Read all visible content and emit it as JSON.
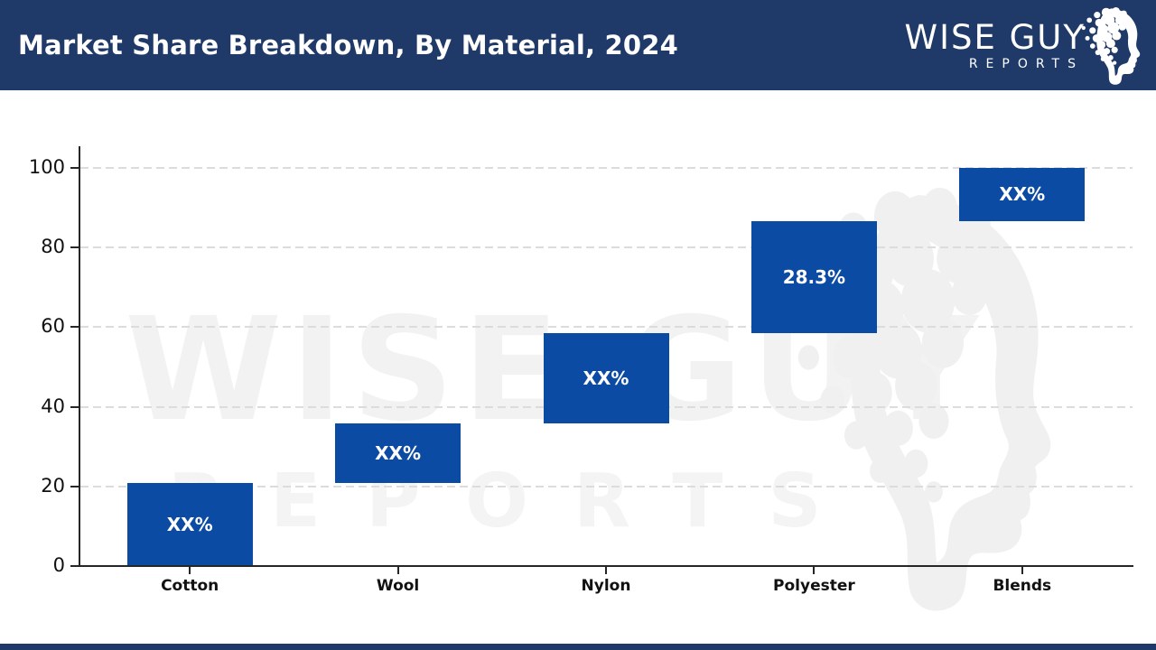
{
  "header": {
    "title": "Market Share Breakdown, By Material, 2024",
    "bg_color": "#1f3a68",
    "logo": {
      "line1": "WISE GUY",
      "line2": "REPORTS"
    }
  },
  "watermark": {
    "line1": "WISE GUY",
    "line2": "REPORTS"
  },
  "chart_data": {
    "type": "bar",
    "variant": "waterfall",
    "title": "Market Share Breakdown, By Material, 2024",
    "categories": [
      "Cotton",
      "Wool",
      "Nylon",
      "Polyester",
      "Blends"
    ],
    "segments": [
      {
        "category": "Cotton",
        "start": 0,
        "end": 20.9,
        "value": 20.9,
        "label": "XX%"
      },
      {
        "category": "Wool",
        "start": 20.9,
        "end": 35.9,
        "value": 15.0,
        "label": "XX%"
      },
      {
        "category": "Nylon",
        "start": 35.9,
        "end": 58.4,
        "value": 22.5,
        "label": "XX%"
      },
      {
        "category": "Polyester",
        "start": 58.4,
        "end": 86.7,
        "value": 28.3,
        "label": "28.3%"
      },
      {
        "category": "Blends",
        "start": 86.7,
        "end": 100,
        "value": 13.3,
        "label": "XX%"
      }
    ],
    "y_ticks": [
      0,
      20,
      40,
      60,
      80,
      100
    ],
    "ylim": [
      0,
      105
    ],
    "xlabel": "",
    "ylabel": "",
    "legend": "none",
    "grid": "dashed-horizontal",
    "bar_color": "#0c4ba3",
    "label_color": "#ffffff"
  },
  "footer": {
    "bg_color": "#1f3a68"
  }
}
